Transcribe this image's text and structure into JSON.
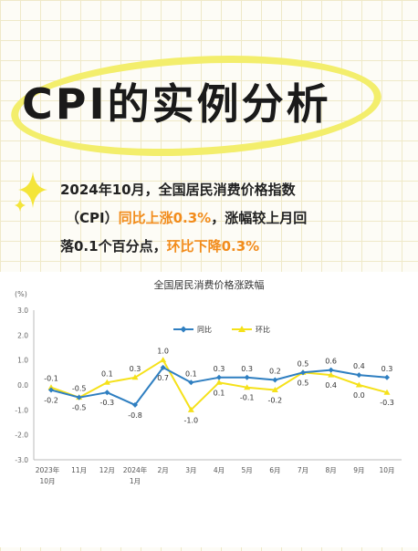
{
  "header": {
    "title": "CPI的实例分析"
  },
  "intro": {
    "part1": "2024年10月，全国居民消费价格指数",
    "part2": "（CPI）",
    "highlight1": "同比上涨0.3%",
    "part3": "，涨幅较上月回",
    "part4": "落0.1个百分点，",
    "highlight2": "环比下降0.3%"
  },
  "colors": {
    "yoy": "#2f7fc1",
    "mom": "#f5e11a",
    "highlight": "#f28c1c",
    "title_circle": "#f3ee6c"
  },
  "chart_data": {
    "type": "line",
    "title": "全国居民消费价格涨跌幅",
    "ylabel": "(%)",
    "ylim": [
      -3.0,
      3.0
    ],
    "yticks": [
      "3.0",
      "2.0",
      "1.0",
      "0.0",
      "-1.0",
      "-2.0",
      "-3.0"
    ],
    "categories": [
      {
        "line1": "2023年",
        "line2": "10月"
      },
      {
        "line1": "11月",
        "line2": ""
      },
      {
        "line1": "12月",
        "line2": ""
      },
      {
        "line1": "2024年",
        "line2": "1月"
      },
      {
        "line1": "2月",
        "line2": ""
      },
      {
        "line1": "3月",
        "line2": ""
      },
      {
        "line1": "4月",
        "line2": ""
      },
      {
        "line1": "5月",
        "line2": ""
      },
      {
        "line1": "6月",
        "line2": ""
      },
      {
        "line1": "7月",
        "line2": ""
      },
      {
        "line1": "8月",
        "line2": ""
      },
      {
        "line1": "9月",
        "line2": ""
      },
      {
        "line1": "10月",
        "line2": ""
      }
    ],
    "series": [
      {
        "name": "同比",
        "values": [
          -0.2,
          -0.5,
          -0.3,
          -0.8,
          0.7,
          0.1,
          0.3,
          0.3,
          0.2,
          0.5,
          0.6,
          0.4,
          0.3
        ],
        "labels": [
          "-0.2",
          "-0.5",
          "-0.3",
          "-0.8",
          "0.7",
          "0.1",
          "0.3",
          "0.3",
          "0.2",
          "0.5",
          "0.6",
          "0.4",
          "0.3"
        ]
      },
      {
        "name": "环比",
        "values": [
          -0.1,
          -0.5,
          0.1,
          0.3,
          1.0,
          -1.0,
          0.1,
          -0.1,
          -0.2,
          0.5,
          0.4,
          0.0,
          -0.3
        ],
        "labels": [
          "-0.1",
          "-0.5",
          "0.1",
          "0.3",
          "1.0",
          "-1.0",
          "0.1",
          "-0.1",
          "-0.2",
          "0.5",
          "0.4",
          "0.0",
          "-0.3"
        ]
      }
    ],
    "legend": "top-center",
    "grid": false
  }
}
